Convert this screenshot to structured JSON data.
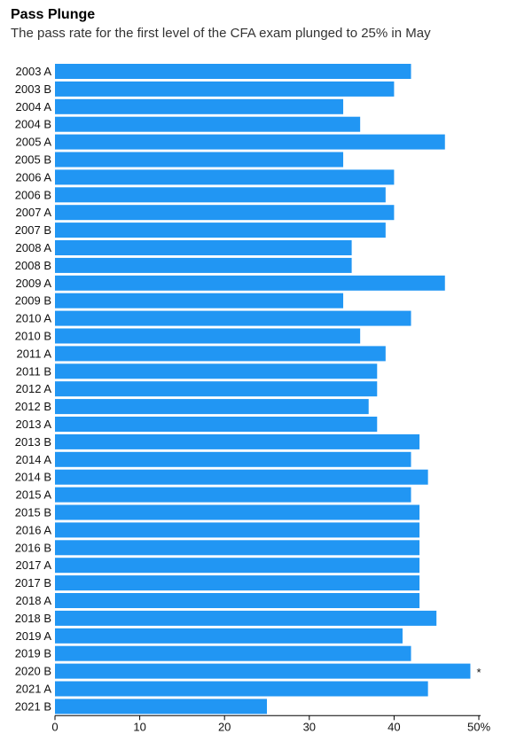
{
  "chart_data": {
    "type": "bar",
    "orientation": "horizontal",
    "title": "Pass Plunge",
    "subtitle": "The pass rate for the first level of the CFA exam plunged to 25% in May",
    "categories": [
      "2003 A",
      "2003 B",
      "2004 A",
      "2004 B",
      "2005 A",
      "2005 B",
      "2006 A",
      "2006 B",
      "2007 A",
      "2007 B",
      "2008 A",
      "2008 B",
      "2009 A",
      "2009 B",
      "2010 A",
      "2010 B",
      "2011 A",
      "2011 B",
      "2012 A",
      "2012 B",
      "2013 A",
      "2013 B",
      "2014 A",
      "2014 B",
      "2015 A",
      "2015 B",
      "2016 A",
      "2016 B",
      "2017 A",
      "2017 B",
      "2018 A",
      "2018 B",
      "2019 A",
      "2019 B",
      "2020 B",
      "2021 A",
      "2021 B"
    ],
    "values": [
      42,
      40,
      34,
      36,
      46,
      34,
      40,
      39,
      40,
      39,
      35,
      35,
      46,
      34,
      42,
      36,
      39,
      38,
      38,
      37,
      38,
      43,
      42,
      44,
      42,
      43,
      43,
      43,
      43,
      43,
      43,
      45,
      41,
      42,
      49,
      44,
      25
    ],
    "xlim": [
      0,
      50
    ],
    "xticks": [
      "0",
      "10",
      "20",
      "30",
      "40",
      "50%"
    ],
    "xtick_values": [
      0,
      10,
      20,
      30,
      40,
      50
    ],
    "bar_color": "#2196f3",
    "annotations": [
      {
        "category": "2020 B",
        "text": "*"
      }
    ],
    "grid": false
  }
}
